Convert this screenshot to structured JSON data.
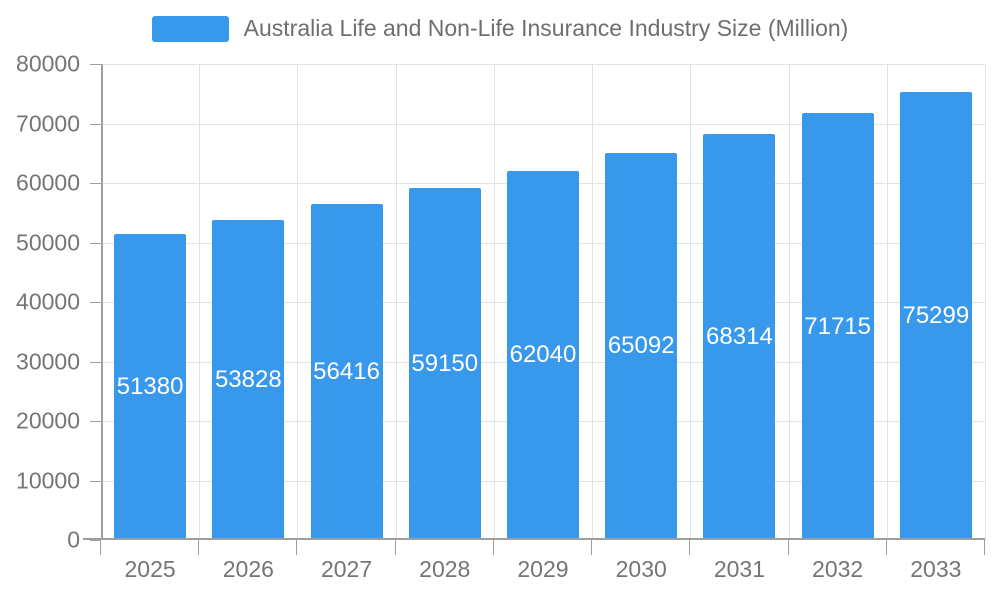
{
  "legend": {
    "label": "Australia Life and Non-Life Insurance Industry Size (Million)"
  },
  "chart_data": {
    "type": "bar",
    "title": "Australia Life and Non-Life Insurance Industry Size (Million)",
    "categories": [
      "2025",
      "2026",
      "2027",
      "2028",
      "2029",
      "2030",
      "2031",
      "2032",
      "2033"
    ],
    "values": [
      51380,
      53828,
      56416,
      59150,
      62040,
      65092,
      68314,
      71715,
      75299
    ],
    "xlabel": "",
    "ylabel": "",
    "ylim": [
      0,
      80000
    ],
    "ytick_step": 10000,
    "ytick_labels": [
      "0",
      "10000",
      "20000",
      "30000",
      "40000",
      "50000",
      "60000",
      "70000",
      "80000"
    ],
    "grid": true,
    "legend_position": "top",
    "value_label_position": "inside-middle"
  },
  "colors": {
    "background": "#ffffff",
    "bar": "#3899ec",
    "grid": "#e3e3e3",
    "axis": "#9e9e9e",
    "tick_label": "#757575",
    "legend_text": "#6e6e6e",
    "value_label": "#ffffff"
  }
}
